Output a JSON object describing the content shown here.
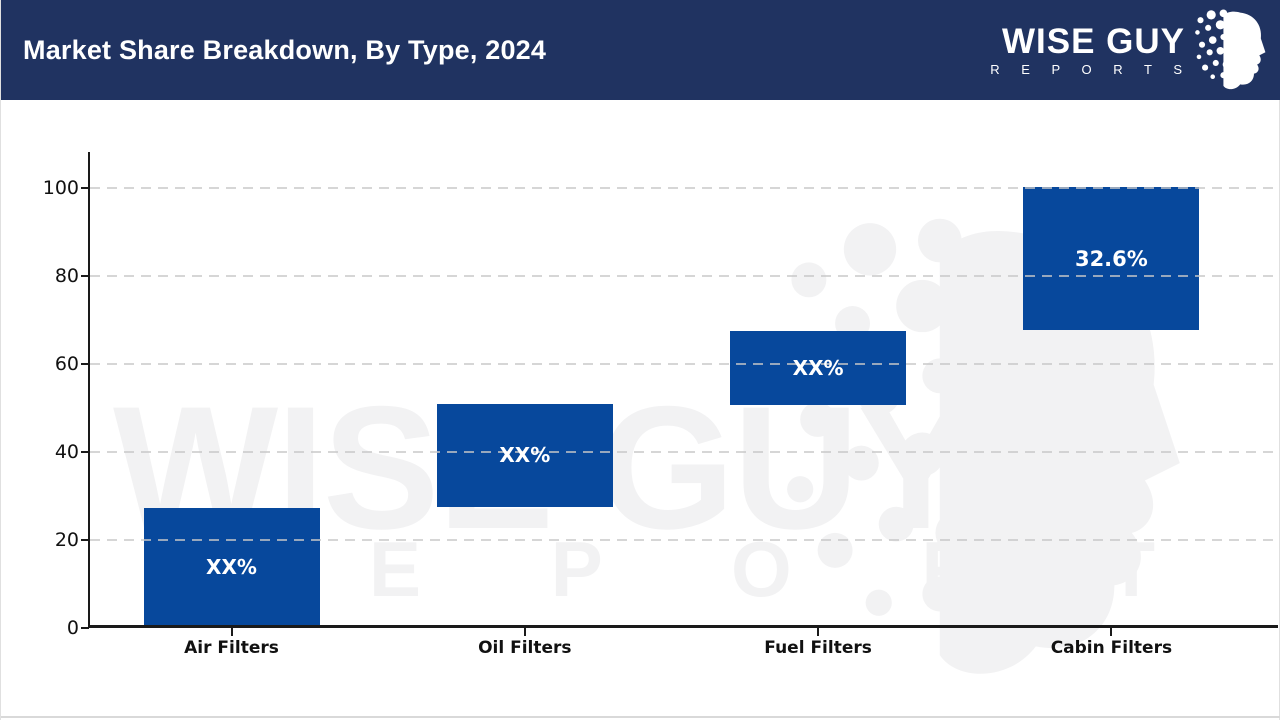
{
  "header": {
    "title": "Market Share Breakdown, By Type, 2024",
    "brand": {
      "name": "WISE GUY",
      "sub": "R E P O R T S"
    }
  },
  "watermark": {
    "name": "WISE GUY",
    "sub": "R E P O R T S"
  },
  "colors": {
    "header_bg": "#203361",
    "header_text": "#ffffff",
    "bar": "#07489C",
    "bar_label": "#ffffff",
    "grid": "#c8c8c8",
    "axis": "#1a1a1a",
    "watermark": "#f2f2f3"
  },
  "chart_data": {
    "type": "bar",
    "variant": "floating-segment-waterfall",
    "title": "Market Share Breakdown, By Type, 2024",
    "categories": [
      "Air Filters",
      "Oil Filters",
      "Fuel Filters",
      "Cabin Filters"
    ],
    "segments": [
      {
        "category": "Air Filters",
        "start": 0,
        "end": 27.1,
        "label": "XX%"
      },
      {
        "category": "Oil Filters",
        "start": 27.3,
        "end": 50.7,
        "label": "XX%"
      },
      {
        "category": "Fuel Filters",
        "start": 50.5,
        "end": 67.3,
        "label": "XX%"
      },
      {
        "category": "Cabin Filters",
        "start": 67.4,
        "end": 100,
        "label": "32.6%"
      }
    ],
    "xlabel": "",
    "ylabel": "",
    "yticks": [
      0,
      20,
      40,
      60,
      80,
      100
    ],
    "ylim": [
      0,
      107
    ],
    "grid": "dashed-horizontal",
    "legend": "none",
    "bar_color": "#07489C",
    "bar_label_color": "#ffffff"
  }
}
